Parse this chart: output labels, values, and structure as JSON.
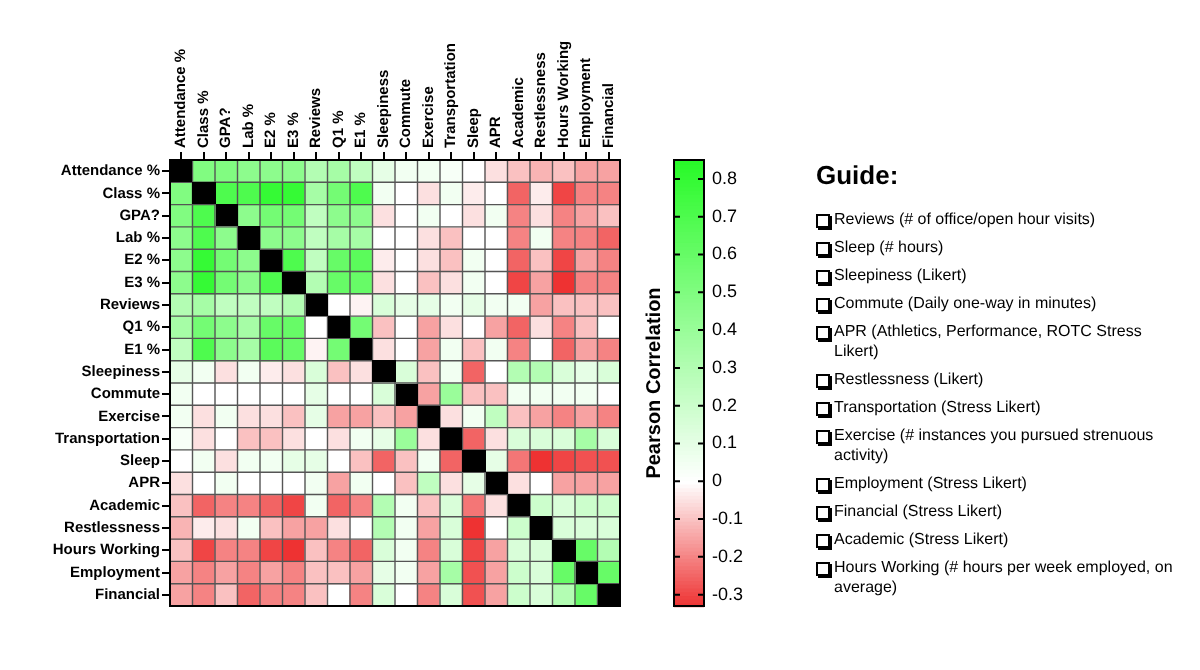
{
  "chart_data": {
    "type": "heatmap",
    "categories": [
      "Attendance %",
      "Class %",
      "GPA?",
      "Lab %",
      "E2 %",
      "E3 %",
      "Reviews",
      "Q1 %",
      "E1 %",
      "Sleepiness",
      "Commute",
      "Exercise",
      "Transportation",
      "Sleep",
      "APR",
      "Academic",
      "Restlessness",
      "Hours Working",
      "Employment",
      "Financial"
    ],
    "y_categories": [
      "Attendance %",
      "Class %",
      "GPA?",
      "Lab %",
      "E2 %",
      "E3 %",
      "Reviews",
      "Q1 %",
      "E1 %",
      "Sleepiness",
      "Commute",
      "Exercise",
      "Transportation",
      "Sleep",
      "APR",
      "Academic",
      "Restlessness",
      "Hours Working",
      "Employment",
      "Financial"
    ],
    "cells": [
      [
        null,
        0.5,
        0.5,
        0.45,
        0.45,
        0.45,
        0.3,
        0.35,
        0.25,
        0.1,
        0.05,
        0.05,
        0.03,
        0,
        -0.05,
        -0.1,
        -0.12,
        -0.1,
        -0.15,
        -0.15
      ],
      [
        0.5,
        null,
        0.7,
        0.7,
        0.8,
        0.8,
        0.35,
        0.55,
        0.7,
        0.05,
        0,
        -0.05,
        0.05,
        -0.03,
        0,
        -0.25,
        -0.03,
        -0.3,
        -0.2,
        -0.2
      ],
      [
        0.5,
        0.7,
        null,
        0.45,
        0.55,
        0.55,
        0.25,
        0.45,
        0.45,
        -0.05,
        0,
        0.05,
        0,
        -0.05,
        0.05,
        -0.2,
        -0.05,
        -0.2,
        -0.15,
        -0.1
      ],
      [
        0.45,
        0.7,
        0.45,
        null,
        0.45,
        0.45,
        0.25,
        0.35,
        0.35,
        0,
        0,
        -0.05,
        -0.1,
        0,
        0,
        -0.2,
        0.05,
        -0.2,
        -0.2,
        -0.25
      ],
      [
        0.45,
        0.8,
        0.55,
        0.45,
        null,
        0.7,
        0.25,
        0.6,
        0.65,
        -0.03,
        0,
        -0.05,
        -0.1,
        0.05,
        0,
        -0.25,
        -0.1,
        -0.3,
        -0.15,
        -0.2
      ],
      [
        0.45,
        0.8,
        0.55,
        0.45,
        0.7,
        null,
        0.3,
        0.6,
        0.6,
        -0.05,
        0,
        -0.1,
        -0.05,
        0.05,
        0,
        -0.3,
        -0.15,
        -0.33,
        -0.2,
        -0.2
      ],
      [
        0.3,
        0.35,
        0.25,
        0.25,
        0.25,
        0.3,
        null,
        0,
        -0.02,
        0.15,
        0.1,
        0.1,
        0.05,
        0.1,
        0.05,
        0.05,
        -0.15,
        -0.1,
        -0.1,
        -0.1
      ],
      [
        0.35,
        0.55,
        0.45,
        0.35,
        0.6,
        0.6,
        0,
        null,
        0.55,
        -0.1,
        0,
        -0.15,
        -0.05,
        0,
        -0.15,
        -0.25,
        -0.05,
        -0.2,
        -0.1,
        0
      ],
      [
        0.25,
        0.7,
        0.45,
        0.35,
        0.65,
        0.6,
        -0.02,
        0.55,
        null,
        -0.05,
        0,
        -0.15,
        0.05,
        -0.1,
        0.05,
        -0.2,
        0,
        -0.25,
        -0.15,
        -0.2
      ],
      [
        0.1,
        0.05,
        -0.05,
        0.05,
        -0.03,
        -0.05,
        0.15,
        -0.1,
        -0.05,
        null,
        0.15,
        -0.1,
        0.05,
        -0.25,
        0,
        0.3,
        0.3,
        0.15,
        0.1,
        0.15
      ],
      [
        0.05,
        0,
        0,
        0,
        0,
        0,
        0.1,
        0,
        0,
        0.15,
        null,
        -0.15,
        0.4,
        -0.1,
        -0.1,
        0.05,
        0.05,
        0.05,
        0.05,
        0
      ],
      [
        0.05,
        -0.05,
        0.05,
        -0.05,
        -0.05,
        -0.1,
        0.1,
        -0.15,
        -0.15,
        -0.1,
        -0.15,
        null,
        -0.05,
        0.05,
        0.25,
        -0.1,
        -0.15,
        -0.2,
        -0.15,
        -0.2
      ],
      [
        0.03,
        -0.05,
        0,
        -0.1,
        -0.1,
        -0.05,
        0,
        -0.05,
        0.05,
        0.1,
        0.4,
        -0.05,
        null,
        -0.25,
        -0.05,
        0.15,
        0.15,
        0.15,
        0.35,
        0.15
      ],
      [
        0,
        0.05,
        -0.05,
        0.05,
        0.05,
        0.1,
        0.1,
        0,
        -0.1,
        -0.25,
        -0.1,
        0.05,
        -0.25,
        null,
        0.1,
        -0.22,
        -0.33,
        -0.3,
        -0.28,
        -0.28
      ],
      [
        -0.05,
        0,
        0.05,
        0,
        0,
        0,
        0.05,
        -0.15,
        0.05,
        0,
        -0.1,
        0.25,
        -0.05,
        0.1,
        null,
        -0.05,
        0,
        -0.15,
        -0.15,
        -0.15
      ],
      [
        -0.1,
        -0.25,
        -0.2,
        -0.2,
        -0.25,
        -0.3,
        0.05,
        -0.25,
        -0.2,
        0.3,
        0.05,
        -0.1,
        0.15,
        -0.22,
        -0.05,
        null,
        0.2,
        0.15,
        0.2,
        0.2
      ],
      [
        -0.12,
        -0.03,
        -0.05,
        0.05,
        -0.1,
        -0.15,
        -0.15,
        -0.05,
        0,
        0.3,
        0.05,
        -0.15,
        0.15,
        -0.33,
        0,
        0.2,
        null,
        0.15,
        0.15,
        0.15
      ],
      [
        -0.1,
        -0.3,
        -0.2,
        -0.2,
        -0.3,
        -0.33,
        -0.1,
        -0.2,
        -0.25,
        0.15,
        0.05,
        -0.2,
        0.15,
        -0.3,
        -0.15,
        0.15,
        0.15,
        null,
        0.6,
        0.3
      ],
      [
        -0.15,
        -0.2,
        -0.15,
        -0.2,
        -0.15,
        -0.2,
        -0.1,
        -0.1,
        -0.15,
        0.1,
        0.05,
        -0.15,
        0.35,
        -0.28,
        -0.15,
        0.2,
        0.15,
        0.6,
        null,
        0.6
      ],
      [
        -0.15,
        -0.2,
        -0.1,
        -0.25,
        -0.2,
        -0.2,
        -0.1,
        0,
        -0.2,
        0.15,
        0,
        -0.2,
        0.15,
        -0.28,
        -0.15,
        0.2,
        0.15,
        0.3,
        0.6,
        null
      ]
    ],
    "grid": true,
    "clabel": "Pearson Correlation",
    "clim": [
      -0.33,
      0.85
    ],
    "cticks": [
      {
        "value": -0.3,
        "label": "-0.3"
      },
      {
        "value": -0.2,
        "label": "-0.2"
      },
      {
        "value": -0.1,
        "label": "-0.1"
      },
      0,
      0.1,
      0.2,
      0.3,
      0.4,
      0.5,
      0.6,
      0.7,
      0.8
    ],
    "annotations": [
      "Guide:",
      "Reviews (# of office/open hour visits)",
      "Sleep (# hours)",
      "Sleepiness (Likert)",
      "Commute (Daily one-way in minutes)",
      "APR (Athletics, Performance, ROTC Stress Likert)",
      "Restlessness (Likert)",
      "Transportation (Stress Likert)",
      "Exercise (# instances you pursued strenuous activity)",
      "Employment (Stress Likert)",
      "Financial (Stress Likert)",
      "Academic (Stress Likert)",
      "Hours Working (# hours per week employed, on average)"
    ]
  }
}
